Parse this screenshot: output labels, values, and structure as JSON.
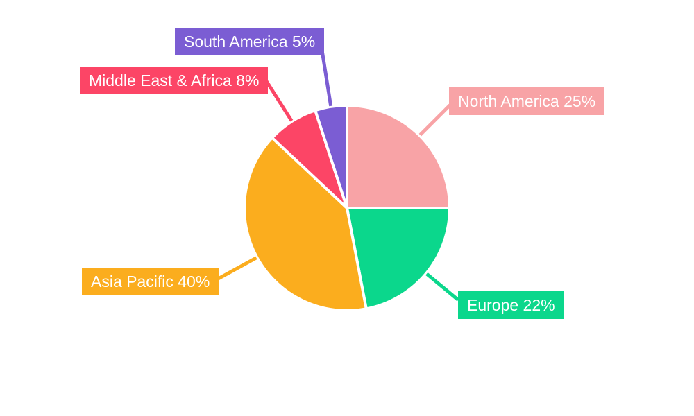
{
  "chart_data": {
    "type": "pie",
    "title": "",
    "start_angle_deg": 0,
    "direction": "clockwise",
    "background": "#FFFFFF",
    "label_text_color": "#FFFFFF",
    "slice_gap_color": "#FFFFFF",
    "segments": [
      {
        "label": "North America",
        "value": 25,
        "display": "North America 25%",
        "color": "#F8A3A6"
      },
      {
        "label": "Europe",
        "value": 22,
        "display": "Europe 22%",
        "color": "#0BD78C"
      },
      {
        "label": "Asia Pacific",
        "value": 40,
        "display": "Asia Pacific 40%",
        "color": "#FBAD1E"
      },
      {
        "label": "Middle East & Africa",
        "value": 8,
        "display": "Middle East & Africa 8%",
        "color": "#FC4566"
      },
      {
        "label": "South America",
        "value": 5,
        "display": "South America 5%",
        "color": "#7B5DD3"
      }
    ]
  }
}
